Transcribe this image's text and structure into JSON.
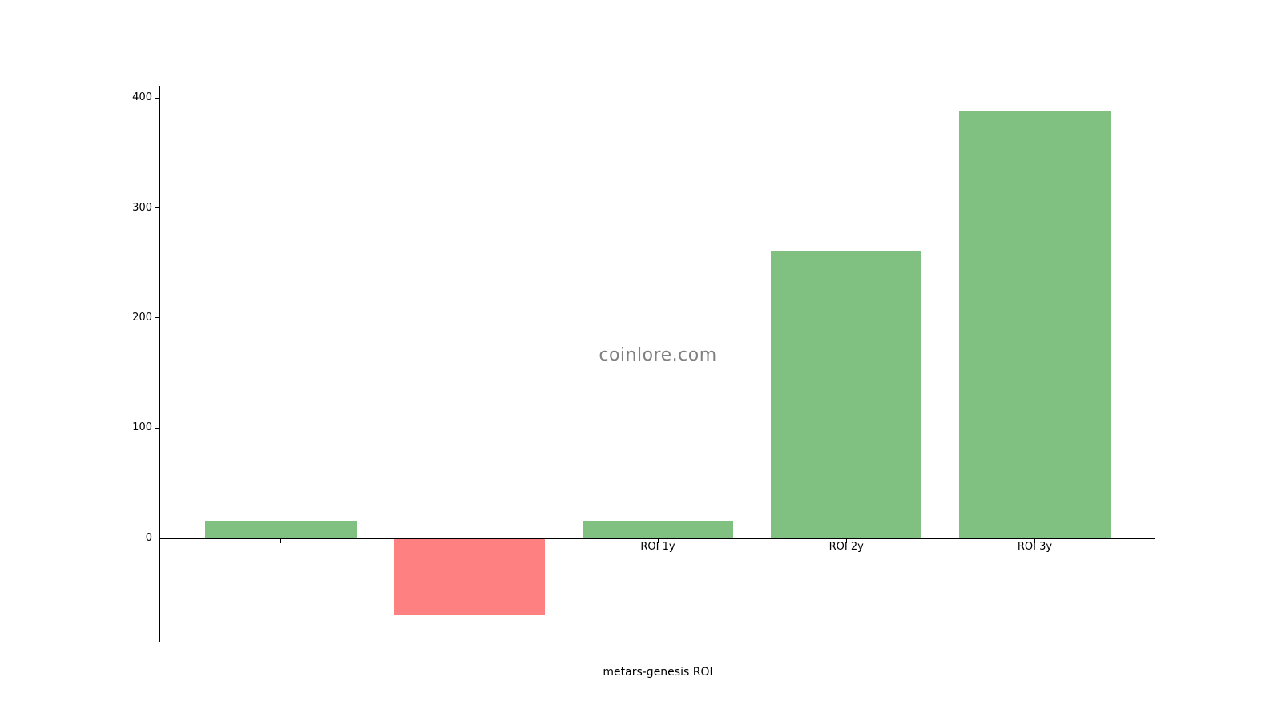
{
  "watermark": {
    "text": "coinlore.com",
    "color": "#808080"
  },
  "footer_title": {
    "text": "metars-genesis ROI",
    "color": "#000000"
  },
  "colors": {
    "positive_bar": "#80c080",
    "negative_bar": "#ff8080",
    "axis": "#000000",
    "background": "#ffffff"
  },
  "chart_data": {
    "type": "bar",
    "title": "metars-genesis ROI",
    "xlabel": "metars-genesis ROI",
    "ylabel": "",
    "categories": [
      "",
      "",
      "ROI 1y",
      "ROI 2y",
      "ROI 3y"
    ],
    "values": [
      16,
      -70,
      16,
      261,
      388
    ],
    "bar_colors": [
      "#80c080",
      "#ff8080",
      "#80c080",
      "#80c080",
      "#80c080"
    ],
    "yticks": [
      0,
      100,
      200,
      300,
      400
    ],
    "ylim": [
      -94,
      411
    ],
    "grid": false,
    "legend": null,
    "watermark": "coinlore.com"
  }
}
